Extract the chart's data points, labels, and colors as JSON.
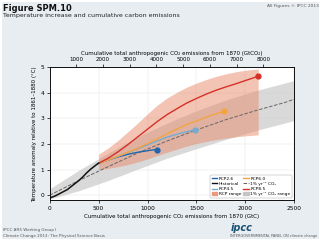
{
  "title": "Figure SPM.10",
  "subtitle": "Temperature increase and cumulative carbon emissions",
  "copyright": "All Figures © IPCC 2013",
  "xlabel_bottom": "Cumulative total anthropogenic CO₂ emissions from 1870 (GtC)",
  "xlabel_top": "Cumulative total anthropogenic CO₂ emissions from 1870 (GtCO₂)",
  "ylabel": "Temperature anomaly relative to 1861–1880 (°C)",
  "xlim": [
    0,
    2500
  ],
  "ylim": [
    -0.2,
    5.0
  ],
  "xticks_bottom": [
    0,
    500,
    1000,
    1500,
    2000,
    2500
  ],
  "xticks_top": [
    1000,
    2000,
    3000,
    4000,
    5000,
    6000,
    7000,
    8000
  ],
  "yticks": [
    0,
    1,
    2,
    3,
    4,
    5
  ],
  "footer_left": "IPCC AR5 Working Group I\nClimate Change 2013: The Physical Science Basis",
  "background_color": "#e8edf2",
  "plot_bg": "#ffffff",
  "border_color": "#b0b8c8",
  "rcp_range_color": "#e8896a",
  "rcp_range_alpha": 0.5,
  "onepct_range_color": "#bbbbbb",
  "onepct_range_alpha": 0.55,
  "hist_color": "#111111",
  "rcp26_color": "#2166ac",
  "rcp45_color": "#74add1",
  "rcp60_color": "#f4a442",
  "rcp85_color": "#d73027",
  "onepct_color": "#666666",
  "hist_x": [
    0,
    20,
    40,
    60,
    80,
    100,
    120,
    140,
    160,
    180,
    200,
    220,
    240,
    260,
    280,
    300,
    320,
    340,
    360,
    380,
    400,
    420,
    440,
    460,
    480,
    500
  ],
  "hist_y": [
    -0.1,
    -0.08,
    -0.05,
    -0.02,
    0.02,
    0.06,
    0.1,
    0.14,
    0.18,
    0.22,
    0.28,
    0.34,
    0.4,
    0.46,
    0.52,
    0.58,
    0.65,
    0.72,
    0.8,
    0.88,
    0.95,
    1.02,
    1.08,
    1.14,
    1.2,
    1.25
  ],
  "rcp26_x": [
    500,
    600,
    700,
    800,
    900,
    1000,
    1050,
    1080,
    1100
  ],
  "rcp26_y": [
    1.25,
    1.38,
    1.5,
    1.6,
    1.68,
    1.74,
    1.77,
    1.78,
    1.78
  ],
  "rcp45_x": [
    500,
    600,
    700,
    800,
    900,
    1000,
    1100,
    1200,
    1300,
    1400,
    1480
  ],
  "rcp45_y": [
    1.25,
    1.38,
    1.52,
    1.67,
    1.82,
    1.97,
    2.12,
    2.27,
    2.38,
    2.48,
    2.55
  ],
  "rcp60_x": [
    500,
    600,
    700,
    800,
    900,
    1000,
    1100,
    1200,
    1300,
    1400,
    1500,
    1600,
    1700,
    1780
  ],
  "rcp60_y": [
    1.25,
    1.38,
    1.53,
    1.68,
    1.84,
    2.02,
    2.2,
    2.4,
    2.58,
    2.76,
    2.9,
    3.05,
    3.18,
    3.28
  ],
  "rcp85_x": [
    500,
    600,
    700,
    800,
    900,
    1000,
    1100,
    1200,
    1300,
    1400,
    1500,
    1600,
    1700,
    1800,
    1900,
    2000,
    2080,
    2130
  ],
  "rcp85_y": [
    1.25,
    1.45,
    1.7,
    1.98,
    2.28,
    2.58,
    2.88,
    3.15,
    3.38,
    3.6,
    3.78,
    3.95,
    4.1,
    4.23,
    4.35,
    4.48,
    4.58,
    4.65
  ],
  "onepct_x": [
    0,
    300,
    600,
    900,
    1200,
    1500,
    1800,
    2100,
    2400,
    2500
  ],
  "onepct_y": [
    0.0,
    0.58,
    1.12,
    1.65,
    2.12,
    2.55,
    2.95,
    3.3,
    3.62,
    3.75
  ],
  "rcp_range_x": [
    500,
    600,
    700,
    800,
    900,
    1000,
    1100,
    1200,
    1300,
    1400,
    1500,
    1600,
    1700,
    1800,
    1900,
    2000,
    2100,
    2130
  ],
  "rcp_range_y_upper": [
    1.6,
    1.85,
    2.15,
    2.48,
    2.82,
    3.18,
    3.52,
    3.8,
    4.02,
    4.22,
    4.38,
    4.52,
    4.64,
    4.74,
    4.82,
    4.88,
    4.92,
    4.93
  ],
  "rcp_range_y_lower": [
    1.0,
    1.05,
    1.12,
    1.2,
    1.3,
    1.42,
    1.55,
    1.68,
    1.8,
    1.92,
    2.02,
    2.1,
    2.17,
    2.23,
    2.28,
    2.32,
    2.35,
    2.36
  ],
  "onepct_range_x": [
    0,
    300,
    600,
    900,
    1200,
    1500,
    1800,
    2100,
    2400,
    2500
  ],
  "onepct_range_y_upper": [
    0.25,
    0.98,
    1.65,
    2.28,
    2.82,
    3.3,
    3.72,
    4.08,
    4.38,
    4.48
  ],
  "onepct_range_y_lower": [
    -0.15,
    0.18,
    0.58,
    1.02,
    1.45,
    1.82,
    2.18,
    2.52,
    2.82,
    2.92
  ],
  "rcp26_dot_x": 1100,
  "rcp26_dot_y": 1.78,
  "rcp45_dot_x": 1480,
  "rcp45_dot_y": 2.55,
  "rcp60_dot_x": 1780,
  "rcp60_dot_y": 3.28,
  "rcp85_dot_x": 2130,
  "rcp85_dot_y": 4.65
}
